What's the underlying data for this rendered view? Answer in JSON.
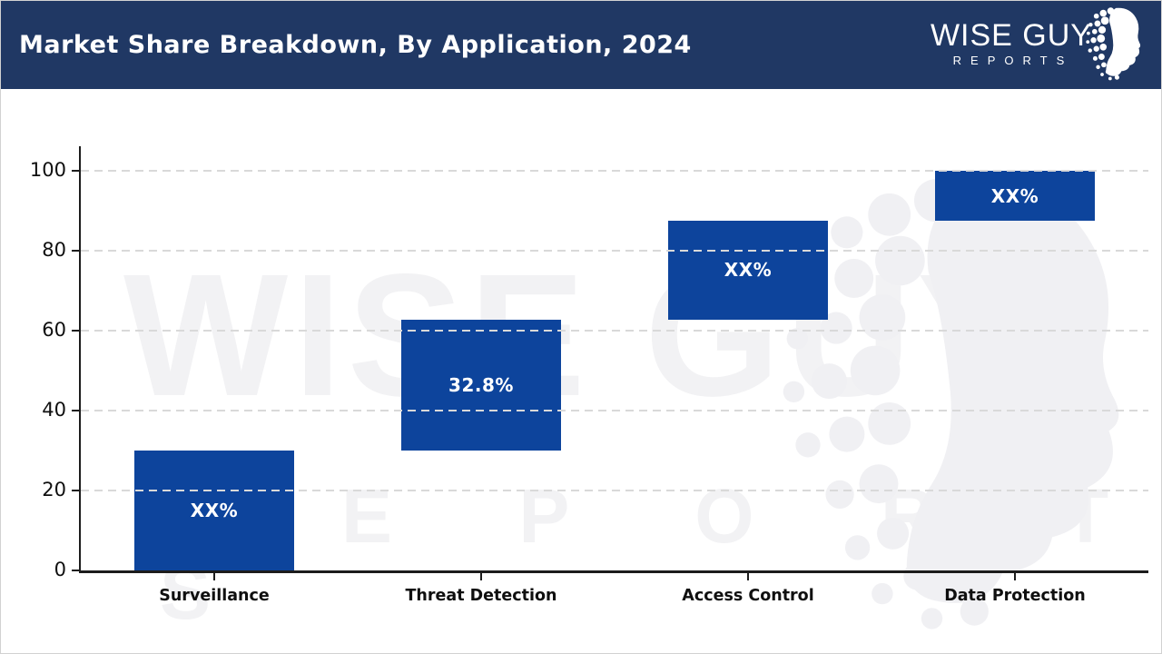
{
  "header": {
    "title": "Market Share Breakdown, By Application, 2024",
    "bg_color": "#203864",
    "logo": {
      "line1": "WISE GUY",
      "line2": "REPORTS"
    }
  },
  "watermark": {
    "line1": "WISE GUY",
    "line2": "R E P O R T S"
  },
  "chart_data": {
    "type": "bar",
    "subtype": "waterfall",
    "title": "Market Share Breakdown, By Application, 2024",
    "xlabel": "",
    "ylabel": "",
    "ylim": [
      0,
      100
    ],
    "yticks": [
      0,
      20,
      40,
      60,
      80,
      100
    ],
    "grid": true,
    "grid_style": "dashed",
    "legend": "none",
    "bar_color": "#0d449c",
    "categories": [
      "Surveillance",
      "Threat Detection",
      "Access Control",
      "Data Protection"
    ],
    "segments": [
      {
        "category": "Surveillance",
        "start": 0,
        "end": 30,
        "label": "XX%"
      },
      {
        "category": "Threat Detection",
        "start": 30,
        "end": 62.8,
        "label": "32.8%"
      },
      {
        "category": "Access Control",
        "start": 62.8,
        "end": 87.5,
        "label": "XX%"
      },
      {
        "category": "Data Protection",
        "start": 87.5,
        "end": 100,
        "label": "XX%"
      }
    ]
  }
}
